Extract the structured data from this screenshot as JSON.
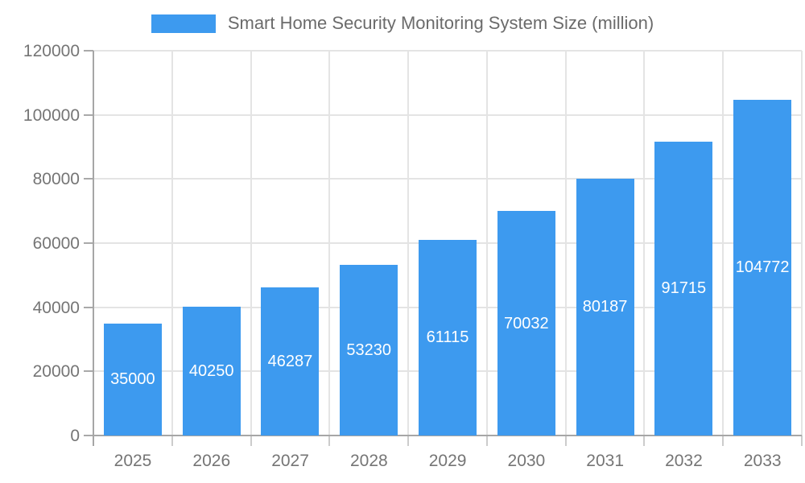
{
  "chart_data": {
    "type": "bar",
    "title": "Smart Home Security Monitoring System Size (million)",
    "categories": [
      "2025",
      "2026",
      "2027",
      "2028",
      "2029",
      "2030",
      "2031",
      "2032",
      "2033"
    ],
    "values": [
      35000,
      40250,
      46287,
      53230,
      61115,
      70032,
      80187,
      91715,
      104772
    ],
    "value_labels": [
      "35000",
      "40250",
      "46287",
      "53230",
      "61115",
      "70032",
      "80187",
      "91715",
      "104772"
    ],
    "yticks": [
      "0",
      "20000",
      "40000",
      "60000",
      "80000",
      "100000",
      "120000"
    ],
    "ytick_values": [
      0,
      20000,
      40000,
      60000,
      80000,
      100000,
      120000
    ],
    "ylim": [
      0,
      120000
    ],
    "xlabel": "",
    "ylabel": "",
    "legend_position": "top",
    "grid": true,
    "colors": {
      "bar": "#3d9aef",
      "axis_text": "#757575",
      "legend_text": "#6b6b6b",
      "gridline": "#e4e4e4",
      "axis_line": "#a6a6a6",
      "value_label": "#ffffff"
    }
  }
}
